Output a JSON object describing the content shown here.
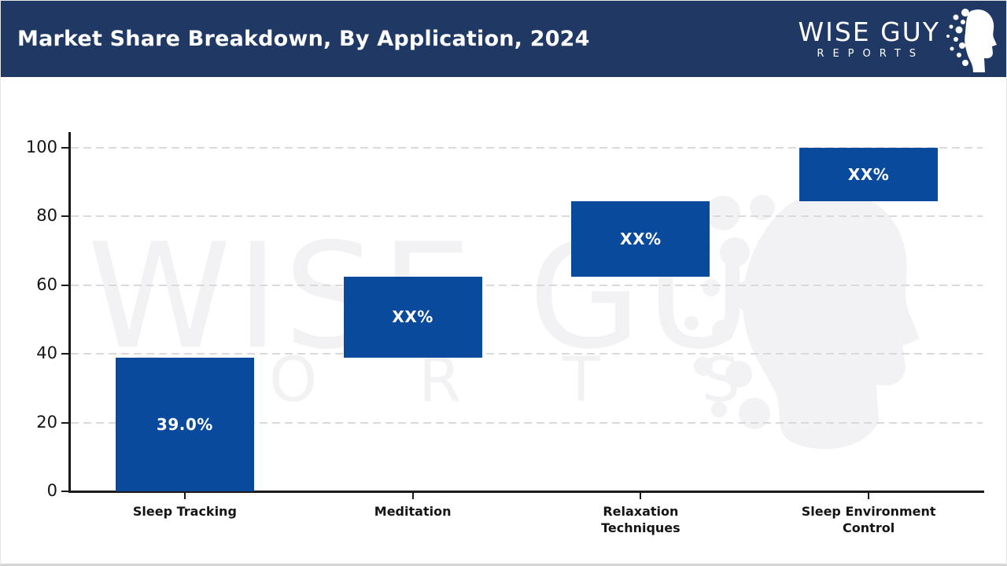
{
  "header": {
    "title": "Market Share Breakdown, By Application, 2024",
    "bg_color": "#1f3864",
    "logo": {
      "line1": "WISE GUY",
      "line2": "REPORTS"
    }
  },
  "watermark": {
    "line1": "WISE GUY",
    "line2": "REPORTS"
  },
  "chart_data": {
    "type": "bar",
    "subtype": "waterfall-stacked-percentage",
    "title": "Market Share Breakdown, By Application, 2024",
    "categories": [
      "Sleep Tracking",
      "Meditation",
      "Relaxation\nTechniques",
      "Sleep Environment\nControl"
    ],
    "segments": [
      {
        "from": 0,
        "to": 39,
        "size_pct": 39.0
      },
      {
        "from": 39,
        "to": 62.5,
        "size_pct": 23.5
      },
      {
        "from": 62.5,
        "to": 84.5,
        "size_pct": 22.0
      },
      {
        "from": 84.5,
        "to": 100,
        "size_pct": 15.5
      }
    ],
    "bar_labels": [
      "39.0%",
      "XX%",
      "XX%",
      "XX%"
    ],
    "xlabel": "",
    "ylabel": "",
    "ylim": [
      0,
      100
    ],
    "yticks": [
      0,
      20,
      40,
      60,
      80,
      100
    ],
    "grid": "horizontal-dashed",
    "legend": "none",
    "bar_color": "#0a4a9c",
    "label_color": "#ffffff",
    "gridline_color": "#dadada",
    "axis_color": "#1a1a1a"
  }
}
